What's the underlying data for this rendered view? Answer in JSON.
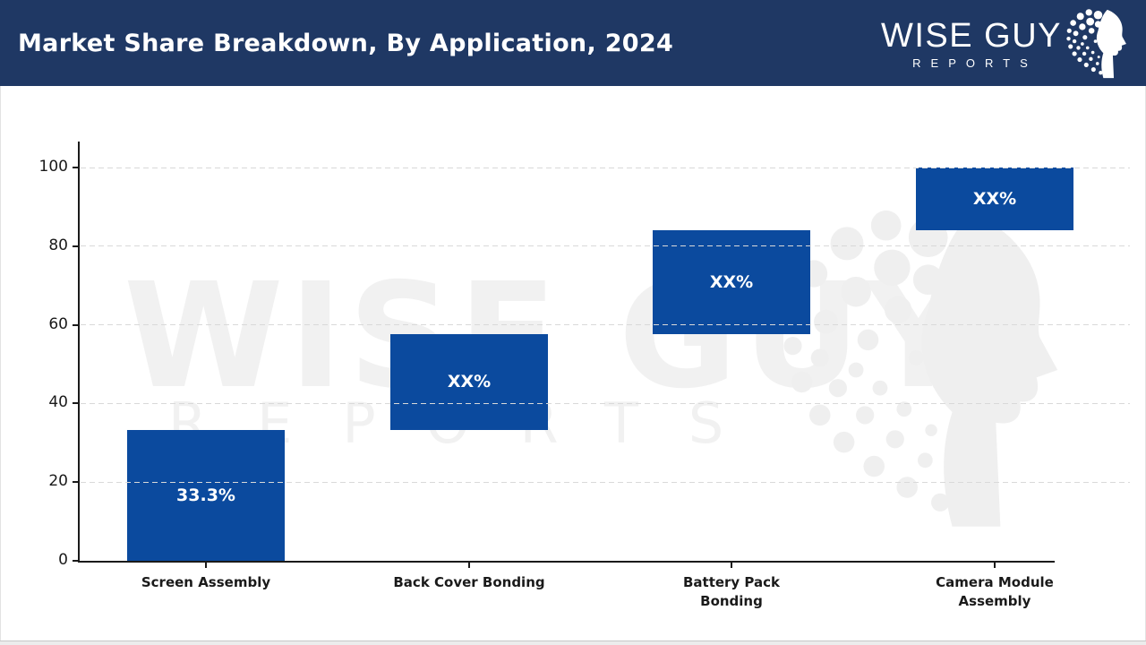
{
  "header": {
    "title": "Market Share Breakdown, By Application, 2024",
    "brand": {
      "name": "WISE GUY",
      "sub": "REPORTS"
    }
  },
  "watermark": {
    "line1": "WISE GUY",
    "line2": "REPORTS"
  },
  "chart_data": {
    "type": "bar",
    "subtype": "waterfall",
    "title": "Market Share Breakdown, By Application, 2024",
    "xlabel": "",
    "ylabel": "",
    "ylim": [
      0,
      100
    ],
    "yticks": [
      0,
      20,
      40,
      60,
      80,
      100
    ],
    "grid": "horizontal-dashed",
    "legend": "none",
    "categories": [
      "Screen Assembly",
      "Back Cover Bonding",
      "Battery Pack\nBonding",
      "Camera Module\nAssembly"
    ],
    "bars": [
      {
        "category": "Screen Assembly",
        "start": 0,
        "end": 33.3,
        "label": "33.3%"
      },
      {
        "category": "Back Cover Bonding",
        "start": 33.3,
        "end": 57.6,
        "label": "XX%"
      },
      {
        "category": "Battery Pack\nBonding",
        "start": 57.6,
        "end": 84.1,
        "label": "XX%"
      },
      {
        "category": "Camera Module\nAssembly",
        "start": 84.1,
        "end": 100,
        "label": "XX%"
      }
    ],
    "bar_color": "#0b4a9e",
    "label_color": "#ffffff",
    "axis_color": "#1a1a1a",
    "grid_color": "#d9d9d9",
    "header_bg": "#1f3864",
    "watermark_color": "#f1f1f1"
  }
}
